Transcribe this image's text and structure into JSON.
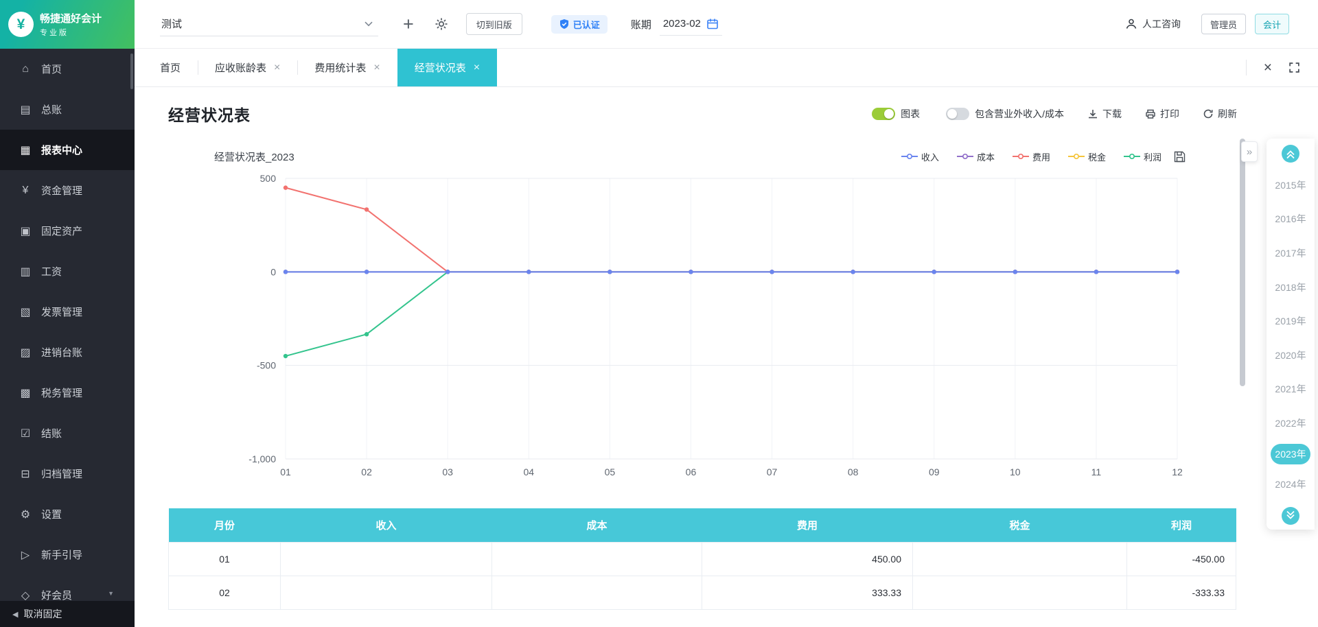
{
  "colors": {
    "teal": "#2fc2d2",
    "table_header_bg": "#47c8d8",
    "toggle_on": "#9bcc38",
    "badge_blue": "#2f81f7",
    "year_selected_bg": "#4cc8d6"
  },
  "logo": {
    "title": "畅捷通好会计",
    "subtitle": "专业版",
    "glyph": "¥"
  },
  "icons": {
    "close": "×",
    "collapse": "»",
    "plus": "+"
  },
  "header": {
    "company": "测试",
    "switch_old": "切到旧版",
    "certified": "已认证",
    "period_label": "账期",
    "period_value": "2023-02",
    "support": "人工咨询",
    "admin": "管理员",
    "accountant": "会计"
  },
  "sidebar": {
    "items": [
      {
        "name": "home",
        "label": "首页",
        "icon": "home-icon",
        "glyph": "⌂",
        "active": false
      },
      {
        "name": "general-ledger",
        "label": "总账",
        "icon": "ledger-icon",
        "glyph": "▤",
        "active": false
      },
      {
        "name": "report-center",
        "label": "报表中心",
        "icon": "report-icon",
        "glyph": "▦",
        "active": true
      },
      {
        "name": "funds",
        "label": "资金管理",
        "icon": "funds-icon",
        "glyph": "¥",
        "active": false
      },
      {
        "name": "fixed-assets",
        "label": "固定资产",
        "icon": "assets-icon",
        "glyph": "▣",
        "active": false
      },
      {
        "name": "payroll",
        "label": "工资",
        "icon": "payroll-icon",
        "glyph": "▥",
        "active": false
      },
      {
        "name": "invoice",
        "label": "发票管理",
        "icon": "invoice-icon",
        "glyph": "▧",
        "active": false
      },
      {
        "name": "purchase-sales",
        "label": "进销台账",
        "icon": "inventory-icon",
        "glyph": "▨",
        "active": false
      },
      {
        "name": "tax",
        "label": "税务管理",
        "icon": "tax-icon",
        "glyph": "▩",
        "active": false
      },
      {
        "name": "closing",
        "label": "结账",
        "icon": "closing-icon",
        "glyph": "☑",
        "active": false
      },
      {
        "name": "archive",
        "label": "归档管理",
        "icon": "archive-icon",
        "glyph": "⊟",
        "active": false
      },
      {
        "name": "settings",
        "label": "设置",
        "icon": "settings-icon",
        "glyph": "⚙",
        "active": false
      },
      {
        "name": "beginner-guide",
        "label": "新手引导",
        "icon": "guide-icon",
        "glyph": "▷",
        "active": false
      },
      {
        "name": "membership",
        "label": "好会员",
        "icon": "member-icon",
        "glyph": "◇",
        "active": false
      }
    ],
    "scroll_more_glyph": "▼",
    "unpin": "取消固定",
    "unpin_glyph": "◀"
  },
  "tabs": [
    {
      "name": "home",
      "label": "首页",
      "closable": false,
      "active": false
    },
    {
      "name": "receivable-aging",
      "label": "应收账龄表",
      "closable": true,
      "active": false
    },
    {
      "name": "expense-statistics",
      "label": "费用统计表",
      "closable": true,
      "active": false
    },
    {
      "name": "operating-status",
      "label": "经营状况表",
      "closable": true,
      "active": true
    }
  ],
  "toolbar": {
    "title": "经营状况表",
    "chart_toggle_label": "图表",
    "chart_toggle_on": true,
    "include_toggle_label": "包含营业外收入/成本",
    "include_toggle_on": false,
    "download": "下载",
    "print": "打印",
    "refresh": "刷新"
  },
  "chart_data": {
    "type": "line",
    "title": "经营状况表_2023",
    "x": [
      "01",
      "02",
      "03",
      "04",
      "05",
      "06",
      "07",
      "08",
      "09",
      "10",
      "11",
      "12"
    ],
    "ylim": [
      -1000,
      500
    ],
    "yticks": [
      {
        "value": 500,
        "label": "500"
      },
      {
        "value": 0,
        "label": "0"
      },
      {
        "value": -500,
        "label": "-500"
      },
      {
        "value": -1000,
        "label": "-1,000"
      }
    ],
    "grid": true,
    "legend_position": "top-right",
    "series": [
      {
        "name": "收入",
        "color": "#6a85ef",
        "values": [
          0,
          0,
          0,
          0,
          0,
          0,
          0,
          0,
          0,
          0,
          0,
          0
        ]
      },
      {
        "name": "成本",
        "color": "#9270ca",
        "values": [
          0,
          0,
          0,
          0,
          0,
          0,
          0,
          0,
          0,
          0,
          0,
          0
        ]
      },
      {
        "name": "费用",
        "color": "#f2726f",
        "values": [
          450,
          333.33,
          0,
          0,
          0,
          0,
          0,
          0,
          0,
          0,
          0,
          0
        ]
      },
      {
        "name": "税金",
        "color": "#f5c53c",
        "values": [
          0,
          0,
          0,
          0,
          0,
          0,
          0,
          0,
          0,
          0,
          0,
          0
        ]
      },
      {
        "name": "利润",
        "color": "#33c48d",
        "values": [
          -450,
          -333.33,
          0,
          0,
          0,
          0,
          0,
          0,
          0,
          0,
          0,
          0
        ]
      }
    ]
  },
  "table": {
    "headers": [
      "月份",
      "收入",
      "成本",
      "费用",
      "税金",
      "利润"
    ],
    "rows": [
      [
        "01",
        "",
        "",
        "450.00",
        "",
        "-450.00"
      ],
      [
        "02",
        "",
        "",
        "333.33",
        "",
        "-333.33"
      ]
    ]
  },
  "year_panel": {
    "years": [
      "2015年",
      "2016年",
      "2017年",
      "2018年",
      "2019年",
      "2020年",
      "2021年",
      "2022年",
      "2023年",
      "2024年"
    ],
    "selected": "2023年"
  }
}
